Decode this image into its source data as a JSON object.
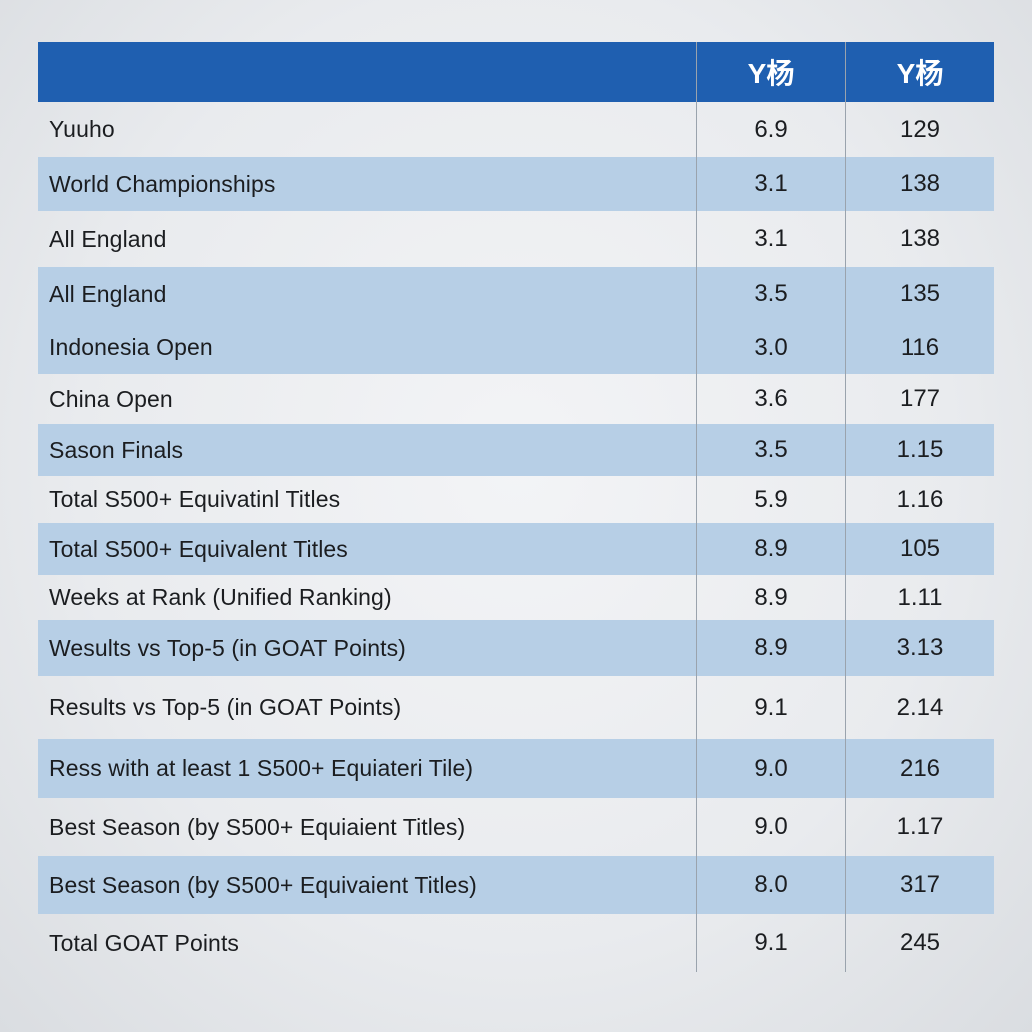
{
  "chart_data": {
    "type": "table",
    "columns": [
      "",
      "Y杨",
      "Y杨"
    ],
    "rows": [
      {
        "label": "Yuuho",
        "values": [
          "6.9",
          "129"
        ]
      },
      {
        "label": "World Championships",
        "values": [
          "3.1",
          "138"
        ]
      },
      {
        "label": "All England",
        "values": [
          "3.1",
          "138"
        ]
      },
      {
        "label": "All England",
        "values": [
          "3.5",
          "135"
        ]
      },
      {
        "label": "Indonesia Open",
        "values": [
          "3.0",
          "116"
        ]
      },
      {
        "label": "China Open",
        "values": [
          "3.6",
          "177"
        ]
      },
      {
        "label": "Sason Finals",
        "values": [
          "3.5",
          "1.15"
        ]
      },
      {
        "label": "Total S500+ Equivatinl Titles",
        "values": [
          "5.9",
          "1.16"
        ]
      },
      {
        "label": "Total S500+ Equivalent Titles",
        "values": [
          "8.9",
          "105"
        ]
      },
      {
        "label": "Weeks at Rank (Unified Ranking)",
        "values": [
          "8.9",
          "1.11"
        ]
      },
      {
        "label": "Wesults vs Top-5 (in GOAT Points)",
        "values": [
          "8.9",
          "3.13"
        ]
      },
      {
        "label": "Results vs Top-5 (in GOAT Points)",
        "values": [
          "9.1",
          "2.14"
        ]
      },
      {
        "label": "Ress with at least 1 S500+ Equiateri Tile)",
        "values": [
          "9.0",
          "216"
        ]
      },
      {
        "label": "Best Season (by S500+ Equiaient Titles)",
        "values": [
          "9.0",
          "1.17"
        ]
      },
      {
        "label": "Best Season (by S500+ Equivaient Titles)",
        "values": [
          "8.0",
          "317"
        ]
      },
      {
        "label": "Total GOAT Points",
        "values": [
          "9.1",
          "245"
        ]
      }
    ],
    "colors": {
      "header": "#1f5fb0",
      "band": "#b7cfe6"
    }
  }
}
